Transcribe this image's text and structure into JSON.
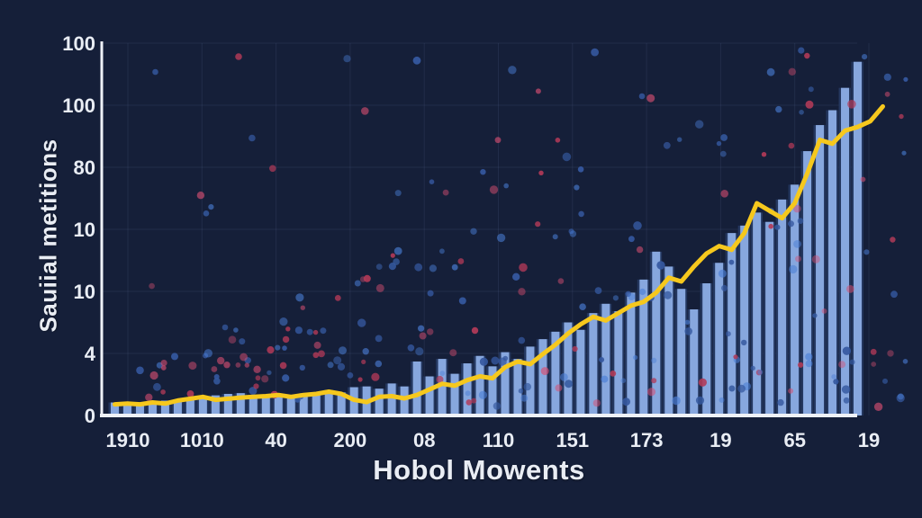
{
  "figure": {
    "background_color": "#151f39",
    "axis_color": "#eef1f7",
    "tick_text_color": "#e9edf4",
    "grid_color": "rgba(150,170,215,0.10)"
  },
  "chart_data": {
    "type": "composite",
    "title": "",
    "xlabel": "Hobol Mowents",
    "ylabel": "Sauiial metitions",
    "ylim": [
      0,
      100
    ],
    "grid": true,
    "legend": "none",
    "y_tick_labels": [
      "100",
      "100",
      "80",
      "10",
      "10",
      "4",
      "0"
    ],
    "x_tick_labels": [
      "1910",
      "1010",
      "40",
      "200",
      "08",
      "110",
      "151",
      "173",
      "19",
      "65",
      "19"
    ],
    "bars": {
      "name": "mentions-bars",
      "color": "#87a7de",
      "back_color": "#24375f",
      "values": [
        3.5,
        3,
        3.2,
        3.6,
        4,
        4.2,
        4.6,
        5,
        5.4,
        5.8,
        6,
        5,
        5.4,
        5.8,
        4.6,
        5.8,
        6.2,
        6.8,
        6.2,
        7.6,
        7.8,
        7.2,
        8.6,
        7.8,
        14.5,
        10.5,
        15.2,
        11.2,
        14,
        16,
        13.2,
        17,
        15.2,
        18.5,
        20.5,
        22.5,
        25,
        23,
        27.5,
        30,
        28,
        33,
        36.5,
        44,
        40,
        34,
        28.5,
        35.5,
        41,
        49,
        51,
        54.5,
        52,
        58,
        62,
        71,
        78,
        82,
        88,
        95
      ]
    },
    "line": {
      "name": "trend-line",
      "color": "#f6c81d",
      "width": 5,
      "values": [
        3,
        3.2,
        3,
        3.5,
        3.2,
        4,
        4.5,
        5,
        4.2,
        4.5,
        4.8,
        5,
        5.2,
        5.5,
        5,
        5.5,
        5.8,
        6.4,
        5.8,
        4.2,
        3.6,
        5,
        5.2,
        4.6,
        5.5,
        7,
        8.5,
        8,
        9.5,
        10.5,
        10,
        13,
        14.5,
        13.8,
        16.5,
        19,
        22,
        24.5,
        26.5,
        25.5,
        27.5,
        29.5,
        30.5,
        33,
        37,
        36,
        40,
        43.5,
        45.5,
        44.5,
        49,
        57,
        55,
        53,
        57,
        65,
        74,
        73,
        76.5,
        77.5,
        79,
        83
      ]
    },
    "scatter": {
      "name": "noise-scatter",
      "count": 250,
      "seed": 9,
      "blue_colors": [
        "#4a7ed6",
        "#35589f"
      ],
      "pink_colors": [
        "#d94f72",
        "#b23a58"
      ],
      "blue_ratio": 0.58
    }
  }
}
